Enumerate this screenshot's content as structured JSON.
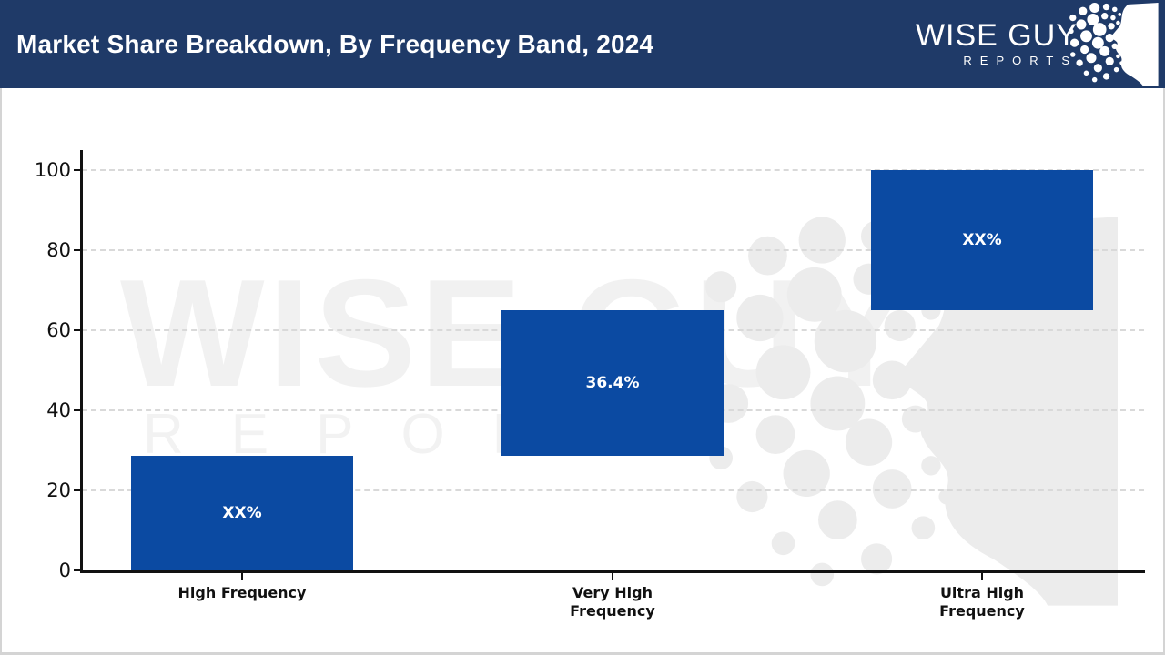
{
  "header": {
    "title": "Market Share Breakdown, By Frequency Band, 2024",
    "logo": {
      "wordmark": "WISE GUY",
      "subtext": "REPORTS"
    }
  },
  "watermark": {
    "line1": "WISE GUY",
    "line2": "REPORTS"
  },
  "chart_data": {
    "type": "bar",
    "subtype": "waterfall",
    "title": "Market Share Breakdown, By Frequency Band, 2024",
    "categories": [
      "High Frequency",
      "Very High\nFrequency",
      "Ultra High\nFrequency"
    ],
    "segments": [
      {
        "category": "High Frequency",
        "start": 0,
        "end": 28.6,
        "label": "XX%"
      },
      {
        "category": "Very High Frequency",
        "start": 28.6,
        "end": 65.0,
        "label": "36.4%"
      },
      {
        "category": "Ultra High Frequency",
        "start": 65.0,
        "end": 100.0,
        "label": "XX%"
      }
    ],
    "values": [
      28.6,
      36.4,
      35.0
    ],
    "yticks": [
      0,
      20,
      40,
      60,
      80,
      100
    ],
    "ylim": [
      0,
      105
    ],
    "xlabel": "",
    "ylabel": "",
    "grid": "horizontal-dashed",
    "legend": "none",
    "colors": {
      "bar": "#0B4AA2",
      "bar_label": "#FFFFFF",
      "axis": "#111111",
      "grid": "#D9D9D9",
      "header_bg": "#1F3A68"
    }
  }
}
